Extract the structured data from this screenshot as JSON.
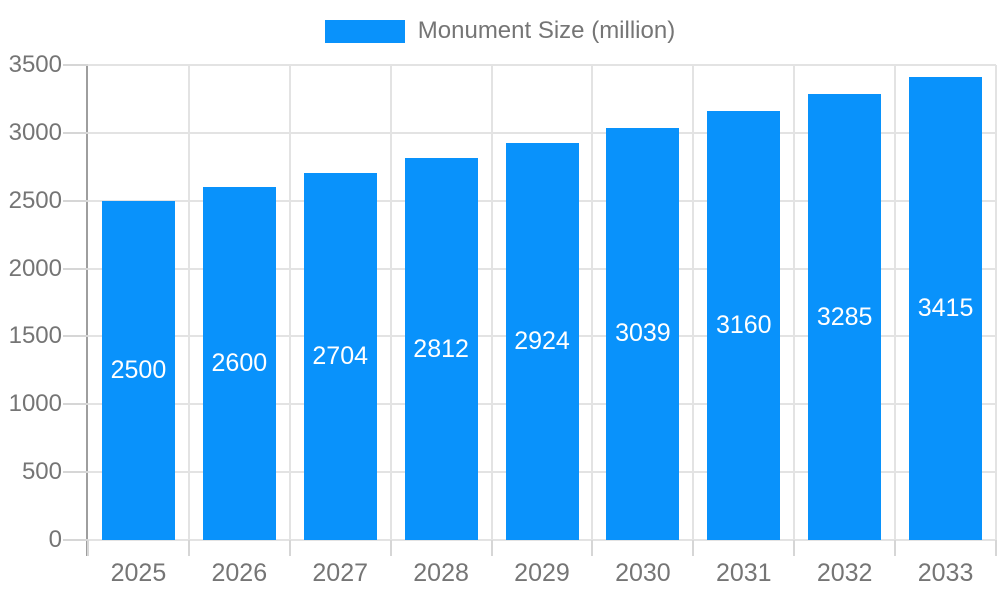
{
  "chart_data": {
    "type": "bar",
    "title": "",
    "legend": {
      "label": "Monument Size (million)",
      "position": "top"
    },
    "categories": [
      "2025",
      "2026",
      "2027",
      "2028",
      "2029",
      "2030",
      "2031",
      "2032",
      "2033"
    ],
    "series": [
      {
        "name": "Monument Size (million)",
        "values": [
          2500,
          2600,
          2704,
          2812,
          2924,
          3039,
          3160,
          3285,
          3415
        ]
      }
    ],
    "bar_value_labels": [
      "2500",
      "2600",
      "2704",
      "2812",
      "2924",
      "3039",
      "3160",
      "3285",
      "3415"
    ],
    "xlabel": "",
    "ylabel": "",
    "ylim": [
      0,
      3500
    ],
    "yticks": [
      0,
      500,
      1000,
      1500,
      2000,
      2500,
      3000,
      3500
    ],
    "grid": true,
    "colors": {
      "bar": "#0992fb",
      "bar_label": "#ffffff",
      "axis_text": "#757575",
      "gridline": "#e3e3e3",
      "tick": "#d6d6d6",
      "axis_line": "#9e9e9e",
      "background": "#ffffff"
    }
  }
}
